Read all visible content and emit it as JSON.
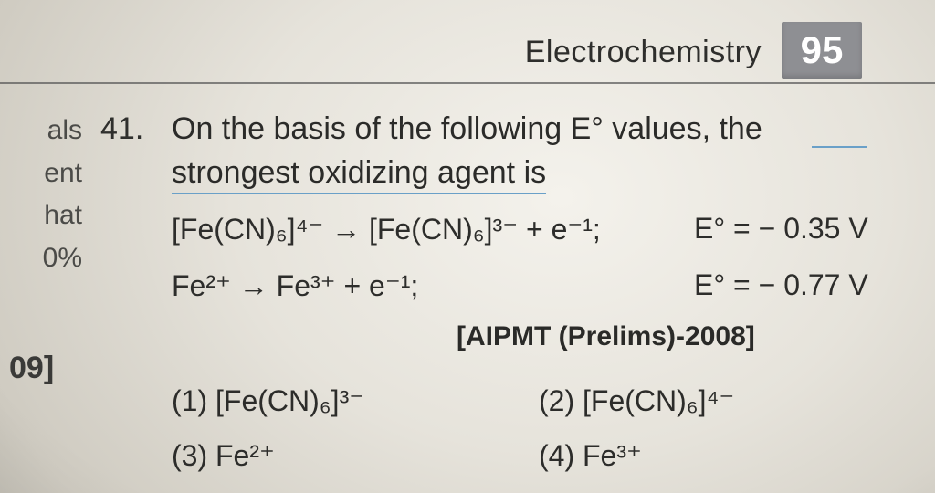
{
  "header": {
    "chapter_title": "Electrochemistry",
    "page_number": "95"
  },
  "left_margin": {
    "frag1": "als",
    "frag2": "ent",
    "frag3": "hat",
    "frag4": "0%",
    "frag5": "09]"
  },
  "question": {
    "number": "41.",
    "line1": "On the basis of the following E° values, the",
    "line2": "strongest oxidizing agent is",
    "eq1_left": "[Fe(CN)₆]⁴⁻ → [Fe(CN)₆]³⁻ + e⁻¹;",
    "eq1_right": "E° = − 0.35 V",
    "eq2_left": "Fe²⁺ → Fe³⁺ + e⁻¹;",
    "eq2_right": "E° = − 0.77 V",
    "source": "[AIPMT (Prelims)-2008]"
  },
  "options": {
    "o1": "(1)  [Fe(CN)₆]³⁻",
    "o2": "(2)  [Fe(CN)₆]⁴⁻",
    "o3": "(3)  Fe²⁺",
    "o4": "(4)  Fe³⁺"
  },
  "style": {
    "background_inner": "#f4f2ec",
    "background_outer": "#aba89e",
    "text_color": "#2b2b29",
    "badge_bg": "#8e8f93",
    "badge_fg": "#ffffff",
    "underline_color": "#6aa0c8",
    "rule_color": "#555555",
    "base_fontsize_pt": 24,
    "heading_fontsize_pt": 26,
    "badge_fontsize_pt": 32
  }
}
